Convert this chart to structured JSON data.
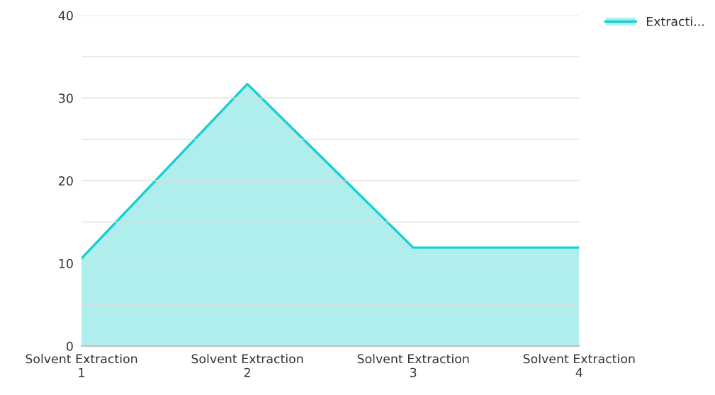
{
  "chart_data": {
    "type": "area",
    "categories": [
      "Solvent Extraction\n1",
      "Solvent Extraction\n2",
      "Solvent Extraction\n3",
      "Solvent Extraction\n4"
    ],
    "series": [
      {
        "name": "Extracti...",
        "color": "#1ccfcf",
        "values": [
          10.6,
          31.7,
          11.9,
          11.9
        ]
      }
    ],
    "ylim": [
      0,
      40
    ],
    "yticks": [
      0,
      {
        "value": 5,
        "label": null
      },
      10,
      {
        "value": 15,
        "label": null
      },
      20,
      {
        "value": 25,
        "label": null
      },
      30,
      {
        "value": 35,
        "label": null
      },
      40
    ],
    "grid": "y",
    "legend": "top right"
  }
}
